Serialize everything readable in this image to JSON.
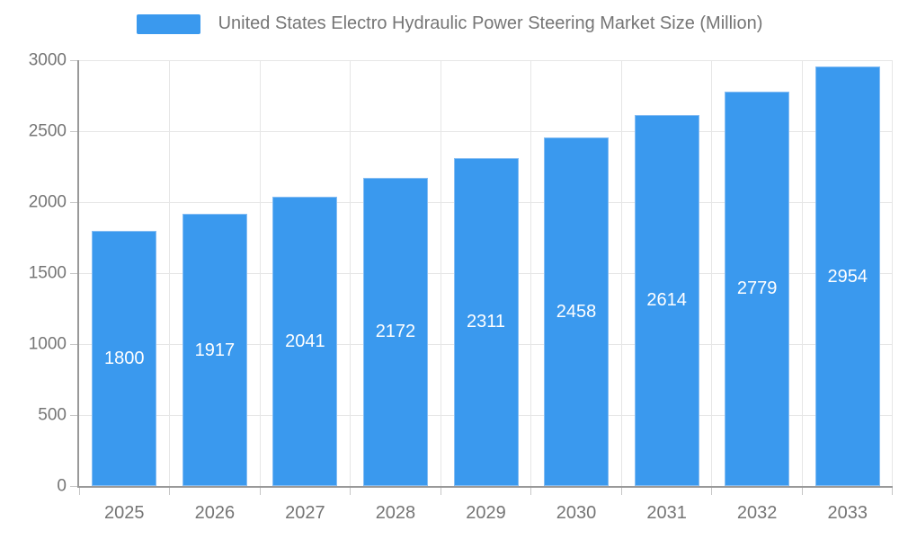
{
  "chart_data": {
    "type": "bar",
    "title": "United States Electro Hydraulic Power Steering Market Size (Million)",
    "series_name": "United States Electro Hydraulic Power Steering Market Size (Million)",
    "categories": [
      "2025",
      "2026",
      "2027",
      "2028",
      "2029",
      "2030",
      "2031",
      "2032",
      "2033"
    ],
    "values": [
      1800,
      1917,
      2041,
      2172,
      2311,
      2458,
      2614,
      2779,
      2954
    ],
    "value_labels": [
      "1800",
      "1917",
      "2041",
      "2172",
      "2311",
      "2458",
      "2614",
      "2779",
      "2954"
    ],
    "xlabel": "",
    "ylabel": "",
    "ylim": [
      0,
      3000
    ],
    "yticks": [
      0,
      500,
      1000,
      1500,
      2000,
      2500,
      3000
    ],
    "ytick_labels": [
      "0",
      "500",
      "1000",
      "1500",
      "2000",
      "2500",
      "3000"
    ],
    "grid": true,
    "legend_position": "top-center",
    "bar_label_position": "inside-middle",
    "colors": {
      "bar_fill": "#3a99ee",
      "bar_border": "#85bdf3",
      "bar_label_text": "#ffffff",
      "axis_line": "#999999",
      "tick_line": "#c6c6c6",
      "gridline": "#e6e6e6",
      "axis_text": "#757575",
      "legend_text": "#757575",
      "background": "#ffffff"
    }
  }
}
